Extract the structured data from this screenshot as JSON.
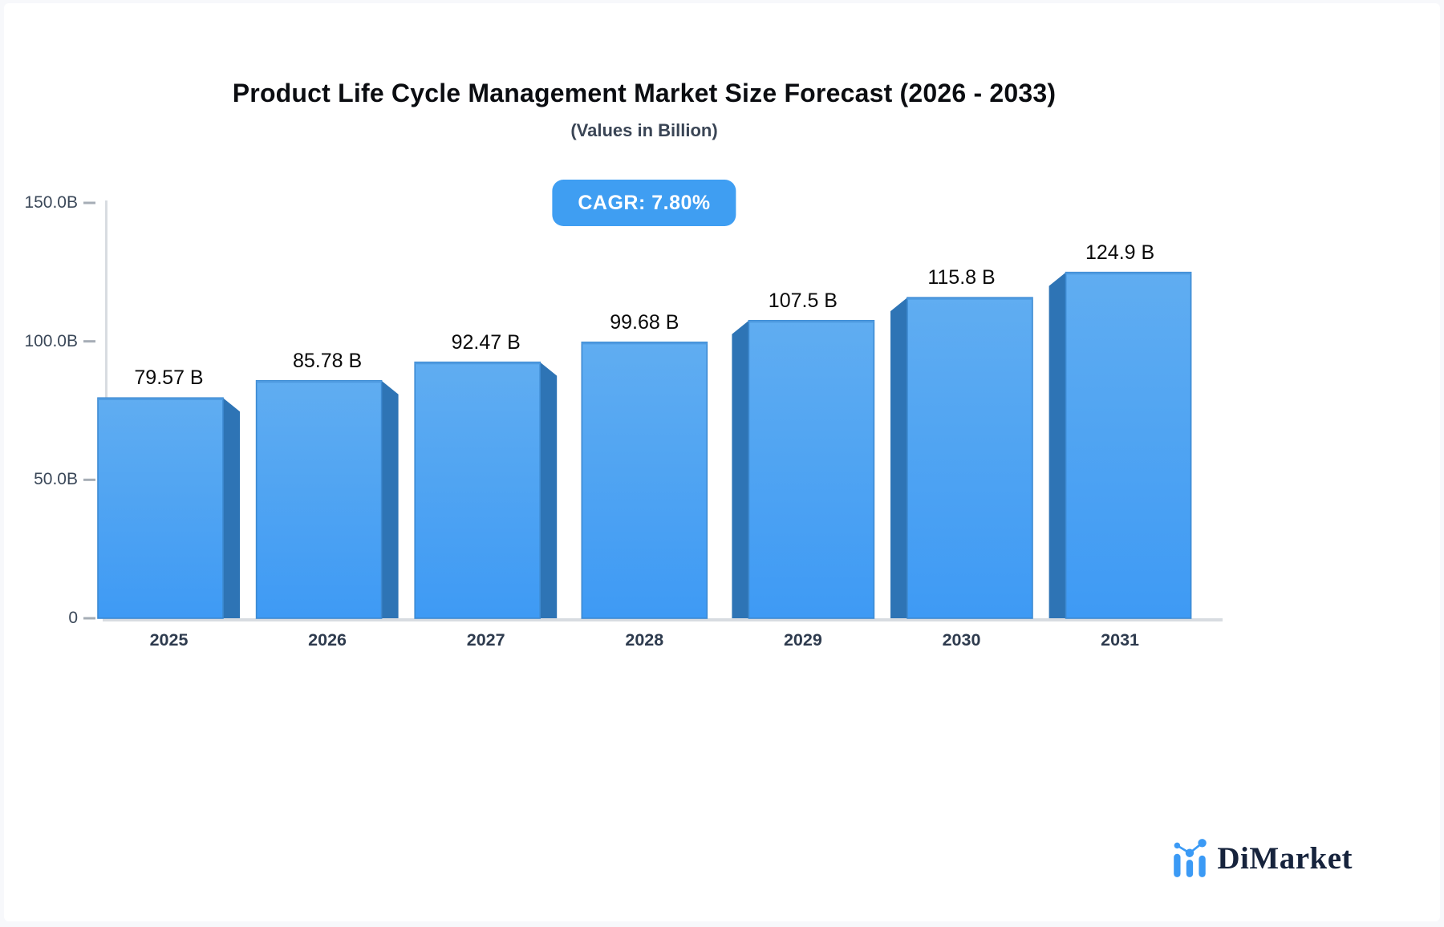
{
  "header": {
    "title": "Product Life Cycle Management Market Size Forecast (2026 - 2033)",
    "subtitle": "(Values in Billion)",
    "cagr_label": "CAGR: 7.80%"
  },
  "brand": {
    "name": "DiMarket",
    "icon": "mini-bar-line-chart-icon"
  },
  "colors": {
    "page_bg": "#f7f8fb",
    "card_bg": "#ffffff",
    "badge_bg": "#3f9ef2",
    "badge_text": "#ffffff",
    "bar_gradient_top": "#60adf1",
    "bar_gradient_bottom": "#3e9af4",
    "bar_edge": "#3d8ad2",
    "bar_top_line": "#4e9ae0",
    "bar_side_face": "#2e74b5",
    "axis_line": "#d8dce1",
    "tick_mark": "#a6adb6",
    "title_text": "#0b0d11",
    "subtitle_text": "#3a4555",
    "y_tick_text": "#3b4859",
    "x_tick_text": "#2e3b4e",
    "value_label_text": "#0a0a0a",
    "brand_text": "#16233c",
    "brand_icon": "#3b9af5"
  },
  "chart_data": {
    "type": "bar",
    "title": "Product Life Cycle Management Market Size Forecast (2026 - 2033)",
    "subtitle": "(Values in Billion)",
    "cagr": "7.80%",
    "categories": [
      "2025",
      "2026",
      "2027",
      "2028",
      "2029",
      "2030",
      "2031"
    ],
    "values": [
      79.57,
      85.78,
      92.47,
      99.68,
      107.5,
      115.8,
      124.9
    ],
    "value_labels": [
      "79.57 B",
      "85.78 B",
      "92.47 B",
      "99.68 B",
      "107.5 B",
      "115.8 B",
      "124.9 B"
    ],
    "y_ticks": [
      {
        "value": 150,
        "label": "150.0B"
      },
      {
        "value": 100,
        "label": "100.0B"
      },
      {
        "value": 50,
        "label": "50.0B"
      },
      {
        "value": 0,
        "label": "0"
      }
    ],
    "ylim": [
      0,
      150
    ],
    "grid": false,
    "legend": false,
    "style": "3d-perspective-bars"
  }
}
